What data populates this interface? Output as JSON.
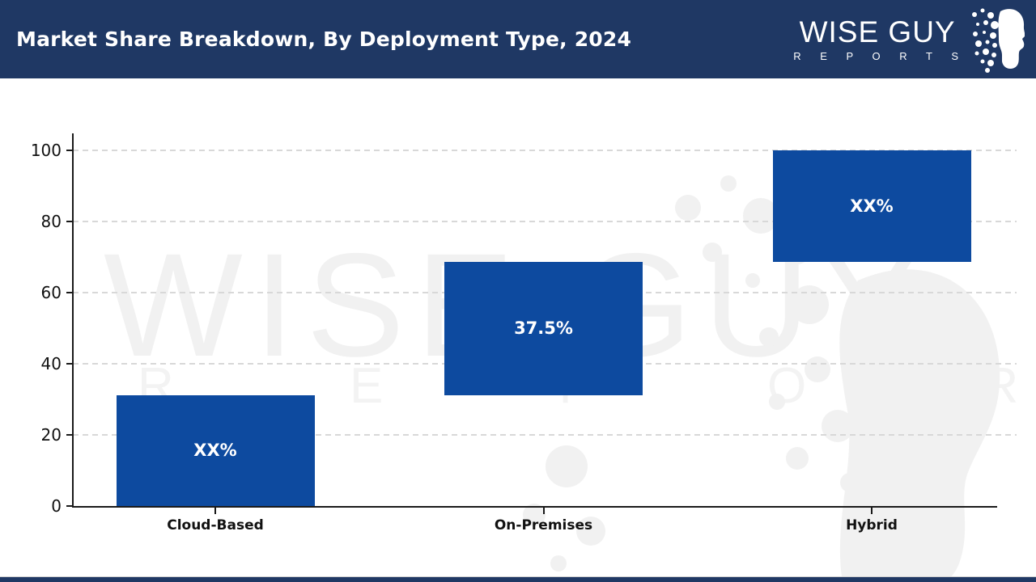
{
  "header": {
    "title": "Market Share Breakdown, By Deployment Type, 2024",
    "logo": {
      "line1": "WISE GUY",
      "line2": "R E P O R T S"
    }
  },
  "watermark": {
    "line1": "WISE GUY",
    "line2": "R E P O R T S"
  },
  "colors": {
    "header_bg": "#1f3864",
    "footer_bg": "#1f3864",
    "bar": "#0d4a9f",
    "bar_label": "#ffffff",
    "grid": "#d8d8d8",
    "axis": "#1a1a1a",
    "watermark": "#f1f1f1"
  },
  "chart_data": {
    "type": "bar",
    "variant": "floating-waterfall",
    "title": "Market Share Breakdown, By Deployment Type, 2024",
    "categories": [
      "Cloud-Based",
      "On-Premises",
      "Hybrid"
    ],
    "segments": [
      {
        "category": "Cloud-Based",
        "start": 0,
        "end": 31.25,
        "label": "XX%"
      },
      {
        "category": "On-Premises",
        "start": 31.25,
        "end": 68.75,
        "label": "37.5%"
      },
      {
        "category": "Hybrid",
        "start": 68.75,
        "end": 100,
        "label": "XX%"
      }
    ],
    "ylim": [
      0,
      100
    ],
    "yticks": [
      0,
      20,
      40,
      60,
      80,
      100
    ],
    "grid": "horizontal-dashed",
    "legend": "none"
  }
}
